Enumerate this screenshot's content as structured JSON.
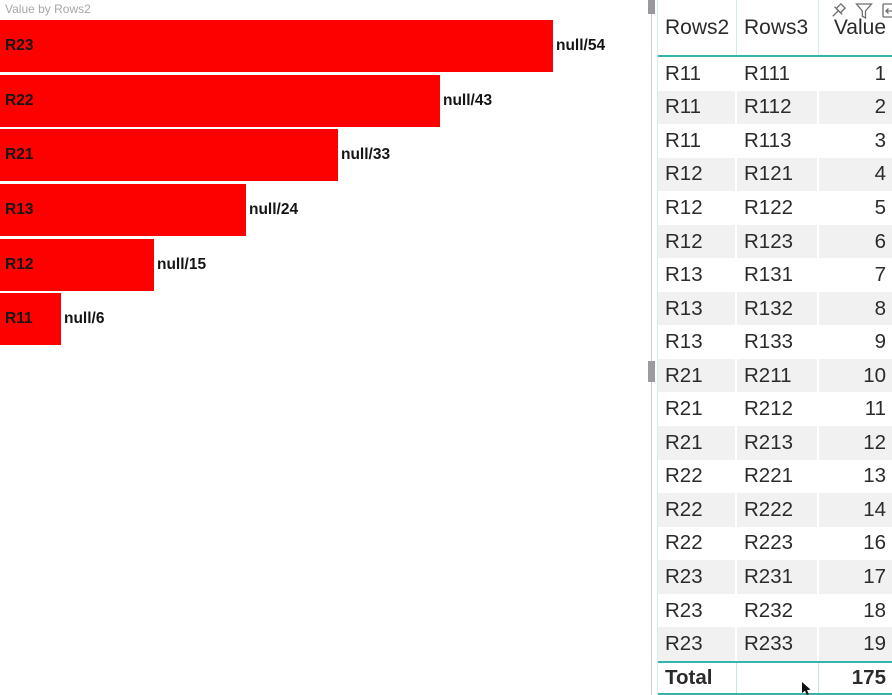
{
  "chart_data": [
    {
      "type": "bar",
      "orientation": "horizontal",
      "title": "Value by Rows2",
      "categories": [
        "R23",
        "R22",
        "R21",
        "R13",
        "R12",
        "R11"
      ],
      "values": [
        54,
        43,
        33,
        24,
        15,
        6
      ],
      "data_labels": [
        "null/54",
        "null/43",
        "null/33",
        "null/24",
        "null/15",
        "null/6"
      ],
      "bar_color": "#fd0101",
      "label_color": "#151515",
      "title_color": "#a7a7a7",
      "xlim": [
        0,
        60
      ],
      "grid": false,
      "legend": false
    },
    {
      "type": "table",
      "columns": [
        "Rows2",
        "Rows3",
        "Value"
      ],
      "rows": [
        [
          "R11",
          "R111",
          "1"
        ],
        [
          "R11",
          "R112",
          "2"
        ],
        [
          "R11",
          "R113",
          "3"
        ],
        [
          "R12",
          "R121",
          "4"
        ],
        [
          "R12",
          "R122",
          "5"
        ],
        [
          "R12",
          "R123",
          "6"
        ],
        [
          "R13",
          "R131",
          "7"
        ],
        [
          "R13",
          "R132",
          "8"
        ],
        [
          "R13",
          "R133",
          "9"
        ],
        [
          "R21",
          "R211",
          "10"
        ],
        [
          "R21",
          "R212",
          "11"
        ],
        [
          "R21",
          "R213",
          "12"
        ],
        [
          "R22",
          "R221",
          "13"
        ],
        [
          "R22",
          "R222",
          "14"
        ],
        [
          "R22",
          "R223",
          "16"
        ],
        [
          "R23",
          "R231",
          "17"
        ],
        [
          "R23",
          "R232",
          "18"
        ],
        [
          "R23",
          "R233",
          "19"
        ]
      ],
      "total_row": [
        "Total",
        "",
        "175"
      ],
      "accent_color": "#35b3ae",
      "alt_row_color": "#f1f1f1"
    }
  ],
  "visual_header": {
    "icons": [
      {
        "name": "pin-icon"
      },
      {
        "name": "filter-icon"
      },
      {
        "name": "focus-mode-icon"
      }
    ],
    "icon_color": "#6e6e6e"
  }
}
